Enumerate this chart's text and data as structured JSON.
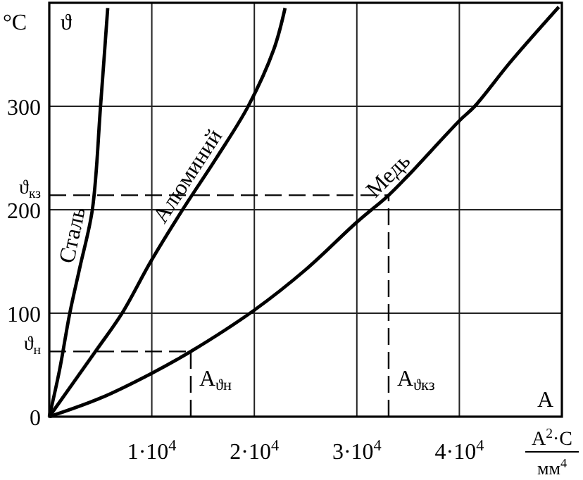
{
  "chart_data": {
    "type": "line",
    "xlabel": "A",
    "ylabel": "ϑ",
    "annotations": [
      "°C",
      "A$^{2}$·C",
      "мм$^{4}$"
    ],
    "xlim": [
      0,
      50000
    ],
    "ylim": [
      0,
      400
    ],
    "xticks": [
      {
        "value": 10000,
        "label": "1·10$^{4}$"
      },
      {
        "value": 20000,
        "label": "2·10$^{4}$"
      },
      {
        "value": 30000,
        "label": "3·10$^{4}$"
      },
      {
        "value": 40000,
        "label": "4·10$^{4}$"
      }
    ],
    "yticks": [
      0,
      100,
      200,
      300
    ],
    "grid": true,
    "legend": false,
    "line_style": "solid",
    "marker": "none",
    "ref_lines": [
      {
        "axis": "y",
        "value": 63,
        "label": "ϑ$_{н}$",
        "line_style": "dashed"
      },
      {
        "axis": "x",
        "value": 13800,
        "label": "A$_{ϑн}$",
        "line_style": "dashed"
      },
      {
        "axis": "y",
        "value": 214,
        "label": "ϑ$_{кз}$",
        "line_style": "dashed"
      },
      {
        "axis": "x",
        "value": 33100,
        "label": "A$_{ϑкз}$",
        "line_style": "dashed"
      }
    ],
    "series": [
      {
        "name": "Сталь",
        "color": "#000000",
        "x": [
          0,
          1000,
          2000,
          3000,
          4200,
          5000,
          5700
        ],
        "values": [
          0,
          45,
          100,
          145,
          200,
          300,
          395
        ]
      },
      {
        "name": "Алюминий",
        "color": "#000000",
        "x": [
          0,
          4500,
          7100,
          9900,
          13000,
          16300,
          19400,
          21900,
          23000
        ],
        "values": [
          0,
          63,
          100,
          150,
          200,
          250,
          300,
          355,
          395
        ]
      },
      {
        "name": "Медь",
        "color": "#000000",
        "x": [
          0,
          5000,
          10000,
          13800,
          20000,
          25000,
          30000,
          33100,
          35000,
          40000,
          41500,
          45000,
          49700
        ],
        "values": [
          0,
          18,
          42,
          63,
          103,
          142,
          188,
          214,
          233,
          286,
          300,
          343,
          396
        ]
      }
    ]
  }
}
